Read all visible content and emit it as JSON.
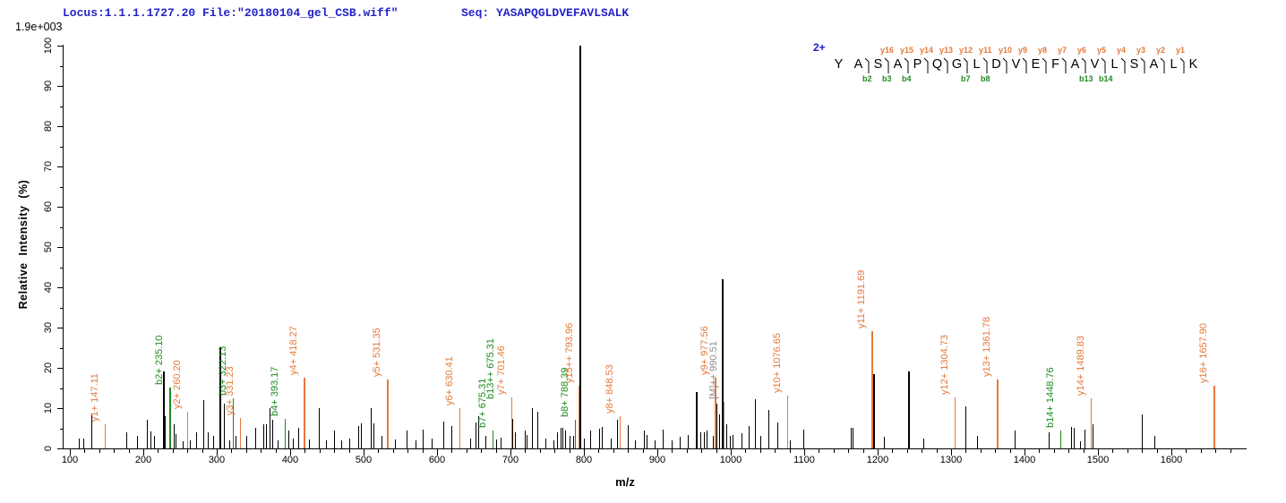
{
  "header": {
    "locus_file": "Locus:1.1.1.1727.20 File:\"20180104_gel_CSB.wiff\"",
    "seq": "Seq: YASAPQGLDVEFAVLSALK"
  },
  "meta": {
    "base_peak_intensity": "1.9e+003"
  },
  "colors": {
    "header_blue": "#2323c8",
    "charge_blue": "#1c1ccd",
    "y_ion": "#e5793a",
    "b_ion": "#1f8a1f",
    "precursor": "#8c8c8c",
    "peak_black": "#000000"
  },
  "annotation": {
    "charge": "2+",
    "residues": [
      "Y",
      "A",
      "S",
      "A",
      "P",
      "Q",
      "G",
      "L",
      "D",
      "V",
      "E",
      "F",
      "A",
      "V",
      "L",
      "S",
      "A",
      "L",
      "K"
    ],
    "cleavages": [
      {
        "after": 2,
        "b": "b2"
      },
      {
        "after": 3,
        "y": "y16",
        "b": "b3"
      },
      {
        "after": 4,
        "y": "y15",
        "b": "b4"
      },
      {
        "after": 5,
        "y": "y14"
      },
      {
        "after": 6,
        "y": "y13"
      },
      {
        "after": 7,
        "y": "y12",
        "b": "b7"
      },
      {
        "after": 8,
        "y": "y11",
        "b": "b8"
      },
      {
        "after": 9,
        "y": "y10"
      },
      {
        "after": 10,
        "y": "y9"
      },
      {
        "after": 11,
        "y": "y8"
      },
      {
        "after": 12,
        "y": "y7"
      },
      {
        "after": 13,
        "y": "y6",
        "b": "b13"
      },
      {
        "after": 14,
        "y": "y5",
        "b": "b14"
      },
      {
        "after": 15,
        "y": "y4"
      },
      {
        "after": 16,
        "y": "y3"
      },
      {
        "after": 17,
        "y": "y2"
      },
      {
        "after": 18,
        "y": "y1"
      }
    ]
  },
  "chart_data": {
    "type": "bar",
    "subtype": "ms2_peptide_fragmentation_spectrum",
    "title": "Locus:1.1.1.1727.20 File:\"20180104_gel_CSB.wiff\" Seq: YASAPQGLDVEFAVLSALK",
    "xlabel": "m/z",
    "ylabel": "Relative  Intensity  (%)",
    "xlim": [
      100,
      1700
    ],
    "ylim": [
      0,
      100
    ],
    "x_major_tick_step": 100,
    "x_minor_tick_step": 20,
    "x_tick_labels": [
      100,
      200,
      300,
      400,
      500,
      600,
      700,
      800,
      900,
      1000,
      1100,
      1200,
      1300,
      1400,
      1500,
      1600
    ],
    "y_major_tick_step": 10,
    "y_minor_tick_step": 5,
    "y_tick_labels": [
      0,
      10,
      20,
      30,
      40,
      50,
      60,
      70,
      80,
      90,
      100
    ],
    "grid": false,
    "labeled_peaks": [
      {
        "labels": [
          "y1+ 147.11"
        ],
        "mz": 147.11,
        "intensity": 6,
        "ion": "y"
      },
      {
        "labels": [
          "b2+ 235.10"
        ],
        "mz": 235.1,
        "intensity": 15,
        "ion": "b"
      },
      {
        "labels": [
          "y2+ 260.20"
        ],
        "mz": 260.2,
        "intensity": 9,
        "ion": "y"
      },
      {
        "labels": [
          "b3+ 322.13"
        ],
        "mz": 322.13,
        "intensity": 12.5,
        "ion": "b"
      },
      {
        "labels": [
          "y3+ 331.23"
        ],
        "mz": 331.23,
        "intensity": 7.5,
        "ion": "y"
      },
      {
        "labels": [
          "b4+ 393.17"
        ],
        "mz": 393.17,
        "intensity": 7.3,
        "ion": "b"
      },
      {
        "labels": [
          "y4+ 418.27"
        ],
        "mz": 418.27,
        "intensity": 17.5,
        "ion": "y"
      },
      {
        "labels": [
          "y5+ 531.35"
        ],
        "mz": 531.35,
        "intensity": 17,
        "ion": "y"
      },
      {
        "labels": [
          "y6+ 630.41"
        ],
        "mz": 630.41,
        "intensity": 10,
        "ion": "y"
      },
      {
        "labels": [
          "b7+ 675.31",
          "b13++ 675.31"
        ],
        "mz": 675.31,
        "intensity": 4.5,
        "ion": "b"
      },
      {
        "labels": [
          "y7+ 701.46"
        ],
        "mz": 701.46,
        "intensity": 12.7,
        "ion": "y"
      },
      {
        "labels": [
          "b8+ 788.39"
        ],
        "mz": 788.39,
        "intensity": 7,
        "ion": "b"
      },
      {
        "labels": [
          "y15++ 793.96"
        ],
        "mz": 793.96,
        "intensity": 100,
        "ion": "y",
        "label_at": 15.5
      },
      {
        "labels": [
          "y8+ 848.53"
        ],
        "mz": 848.53,
        "intensity": 8,
        "ion": "y"
      },
      {
        "labels": [
          "y9+ 977.56"
        ],
        "mz": 977.56,
        "intensity": 17.5,
        "ion": "y"
      },
      {
        "labels": [
          "[M]++ 990.51"
        ],
        "mz": 990.51,
        "intensity": 11.6,
        "ion": "precursor"
      },
      {
        "labels": [
          "y10+ 1076.65"
        ],
        "mz": 1076.65,
        "intensity": 13,
        "ion": "y"
      },
      {
        "labels": [
          "y11+ 1191.69"
        ],
        "mz": 1191.69,
        "intensity": 29,
        "ion": "y"
      },
      {
        "labels": [
          "y12+ 1304.73"
        ],
        "mz": 1304.73,
        "intensity": 12.7,
        "ion": "y"
      },
      {
        "labels": [
          "y13+ 1361.78"
        ],
        "mz": 1361.78,
        "intensity": 17,
        "ion": "y"
      },
      {
        "labels": [
          "b14+ 1448.76"
        ],
        "mz": 1448.76,
        "intensity": 4.4,
        "ion": "b"
      },
      {
        "labels": [
          "y14+ 1489.83"
        ],
        "mz": 1489.83,
        "intensity": 12.5,
        "ion": "y"
      },
      {
        "labels": [
          "y16+ 1657.90"
        ],
        "mz": 1657.9,
        "intensity": 15.5,
        "ion": "y"
      }
    ],
    "unlabeled_peaks": [
      [
        112,
        2.5
      ],
      [
        118,
        2.5
      ],
      [
        129,
        8.5
      ],
      [
        177,
        4
      ],
      [
        191,
        3
      ],
      [
        205,
        7
      ],
      [
        210,
        4.2
      ],
      [
        215,
        3
      ],
      [
        227,
        19
      ],
      [
        229,
        8
      ],
      [
        241,
        6
      ],
      [
        244,
        3.5
      ],
      [
        254,
        1.8
      ],
      [
        263,
        2
      ],
      [
        272,
        4
      ],
      [
        282,
        12
      ],
      [
        288,
        4
      ],
      [
        295,
        3
      ],
      [
        304,
        25
      ],
      [
        310,
        11
      ],
      [
        317,
        2
      ],
      [
        325,
        3
      ],
      [
        340,
        3
      ],
      [
        352,
        5
      ],
      [
        364,
        6
      ],
      [
        367,
        6
      ],
      [
        372,
        10
      ],
      [
        376,
        7
      ],
      [
        383,
        2
      ],
      [
        397,
        4.5
      ],
      [
        404,
        2.5
      ],
      [
        411,
        5
      ],
      [
        425,
        2.2
      ],
      [
        439,
        10
      ],
      [
        449,
        2
      ],
      [
        460,
        4.5
      ],
      [
        470,
        2
      ],
      [
        481,
        2.5
      ],
      [
        493,
        5.5
      ],
      [
        496,
        6.2
      ],
      [
        510,
        10
      ],
      [
        513,
        6.2
      ],
      [
        524,
        3
      ],
      [
        543,
        2.2
      ],
      [
        559,
        4.5
      ],
      [
        571,
        2
      ],
      [
        581,
        4.7
      ],
      [
        593,
        2.5
      ],
      [
        609,
        6.7
      ],
      [
        620,
        5.5
      ],
      [
        645,
        2.5
      ],
      [
        653,
        6.4
      ],
      [
        656,
        8
      ],
      [
        666,
        3
      ],
      [
        680,
        2.2
      ],
      [
        687,
        2.6
      ],
      [
        703,
        7.4
      ],
      [
        706,
        4
      ],
      [
        719,
        4.5
      ],
      [
        722,
        3.4
      ],
      [
        729,
        10
      ],
      [
        736,
        9
      ],
      [
        748,
        2.5
      ],
      [
        758,
        2
      ],
      [
        764,
        4
      ],
      [
        768,
        5
      ],
      [
        771,
        5.2
      ],
      [
        774,
        4.4
      ],
      [
        781,
        3
      ],
      [
        785,
        3
      ],
      [
        800,
        2.5
      ],
      [
        809,
        4.4
      ],
      [
        821,
        4.9
      ],
      [
        824,
        5.4
      ],
      [
        836,
        2.5
      ],
      [
        845,
        7
      ],
      [
        860,
        5.8
      ],
      [
        869,
        2
      ],
      [
        882,
        4.5
      ],
      [
        885,
        3.4
      ],
      [
        896,
        2
      ],
      [
        907,
        4.7
      ],
      [
        919,
        2
      ],
      [
        930,
        2.9
      ],
      [
        941,
        3.4
      ],
      [
        952,
        14
      ],
      [
        958,
        4.1
      ],
      [
        964,
        4
      ],
      [
        967,
        4.4
      ],
      [
        975,
        3
      ],
      [
        981,
        11
      ],
      [
        984,
        8.5
      ],
      [
        988,
        42
      ],
      [
        994,
        6
      ],
      [
        999,
        3
      ],
      [
        1002,
        3.4
      ],
      [
        1015,
        3.8
      ],
      [
        1024,
        5.5
      ],
      [
        1033,
        12.2
      ],
      [
        1040,
        3
      ],
      [
        1051,
        9.6
      ],
      [
        1064,
        6.5
      ],
      [
        1080,
        2
      ],
      [
        1099,
        4.7
      ],
      [
        1163,
        5
      ],
      [
        1166,
        5.2
      ],
      [
        1194,
        18.5
      ],
      [
        1209,
        2.9
      ],
      [
        1241,
        19
      ],
      [
        1262,
        2.5
      ],
      [
        1319,
        10.5
      ],
      [
        1335,
        3.1
      ],
      [
        1362,
        16
      ],
      [
        1386,
        4.4
      ],
      [
        1433,
        4
      ],
      [
        1464,
        5.3
      ],
      [
        1467,
        5
      ],
      [
        1476,
        1.8
      ],
      [
        1482,
        4.6
      ],
      [
        1493,
        6
      ],
      [
        1560,
        8.4
      ],
      [
        1577,
        3.1
      ]
    ]
  }
}
